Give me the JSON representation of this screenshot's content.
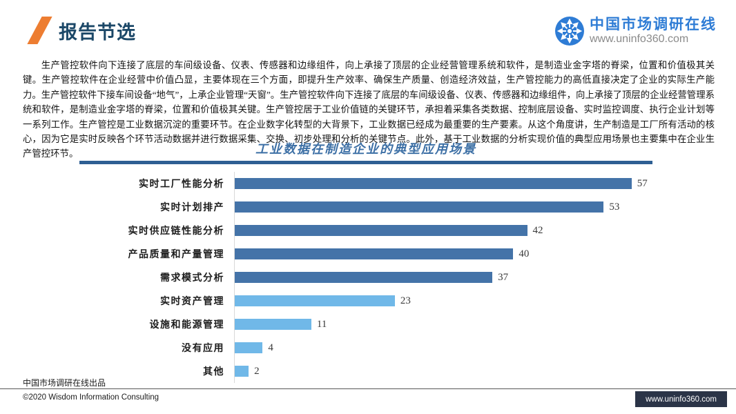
{
  "header": {
    "title": "报告节选",
    "logo": {
      "name": "中国市场调研在线",
      "url": "www.uninfo360.com"
    }
  },
  "paragraph": "生产管控软件向下连接了底层的车间级设备、仪表、传感器和边缘组件，向上承接了顶层的企业经营管理系统和软件，是制造业金字塔的脊梁，位置和价值极其关键。生产管控软件在企业经营中价值凸显，主要体现在三个方面，即提升生产效率、确保生产质量、创造经济效益，生产管控能力的高低直接决定了企业的实际生产能力。生产管控软件下接车间设备“地气”，上承企业管理“天窗”。生产管控软件向下连接了底层的车间级设备、仪表、传感器和边缘组件，向上承接了顶层的企业经营管理系统和软件，是制造业金字塔的脊梁，位置和价值极其关键。生产管控居于工业价值链的关键环节，承担着采集各类数据、控制底层设备、实时监控调度、执行企业计划等一系列工作。生产管控是工业数据沉淀的重要环节。在企业数字化转型的大背景下，工业数据已经成为最重要的生产要素。从这个角度讲，生产制造是工厂所有活动的核心，因为它是实时反映各个环节活动数据并进行数据采集、交换、初步处理和分析的关键节点。此外，基于工业数据的分析实现价值的典型应用场景也主要集中在企业生产管控环节。",
  "chart_data": {
    "type": "bar",
    "orientation": "horizontal",
    "title": "工业数据在制造企业的典型应用场景",
    "categories": [
      "实时工厂性能分析",
      "实时计划排产",
      "实时供应链性能分析",
      "产品质量和产量管理",
      "需求模式分析",
      "实时资产管理",
      "设施和能源管理",
      "没有应用",
      "其他"
    ],
    "values": [
      57,
      53,
      42,
      40,
      37,
      23,
      11,
      4,
      2
    ],
    "bar_colors": [
      "#4473A8",
      "#4473A8",
      "#4473A8",
      "#4473A8",
      "#4473A8",
      "#70B8E8",
      "#70B8E8",
      "#70B8E8",
      "#70B8E8"
    ],
    "xlim": [
      0,
      60
    ],
    "xlabel": "",
    "ylabel": "",
    "grid": false,
    "legend": false,
    "value_labels": "end-of-bar"
  },
  "footer": {
    "produced_by": "中国市场调研在线出品",
    "copyright": "©2020 Wisdom Information Consulting",
    "badge": "www.uninfo360.com"
  },
  "colors": {
    "accent_orange": "#ED7D31",
    "header_navy": "#1C4868",
    "logo_blue": "#2E7CD5",
    "chart_title_blue": "#3C6FA5",
    "rule_blue": "#2E5F93",
    "bar_dark_blue": "#4473A8",
    "bar_light_blue": "#70B8E8",
    "badge_bg": "#2B3447"
  }
}
